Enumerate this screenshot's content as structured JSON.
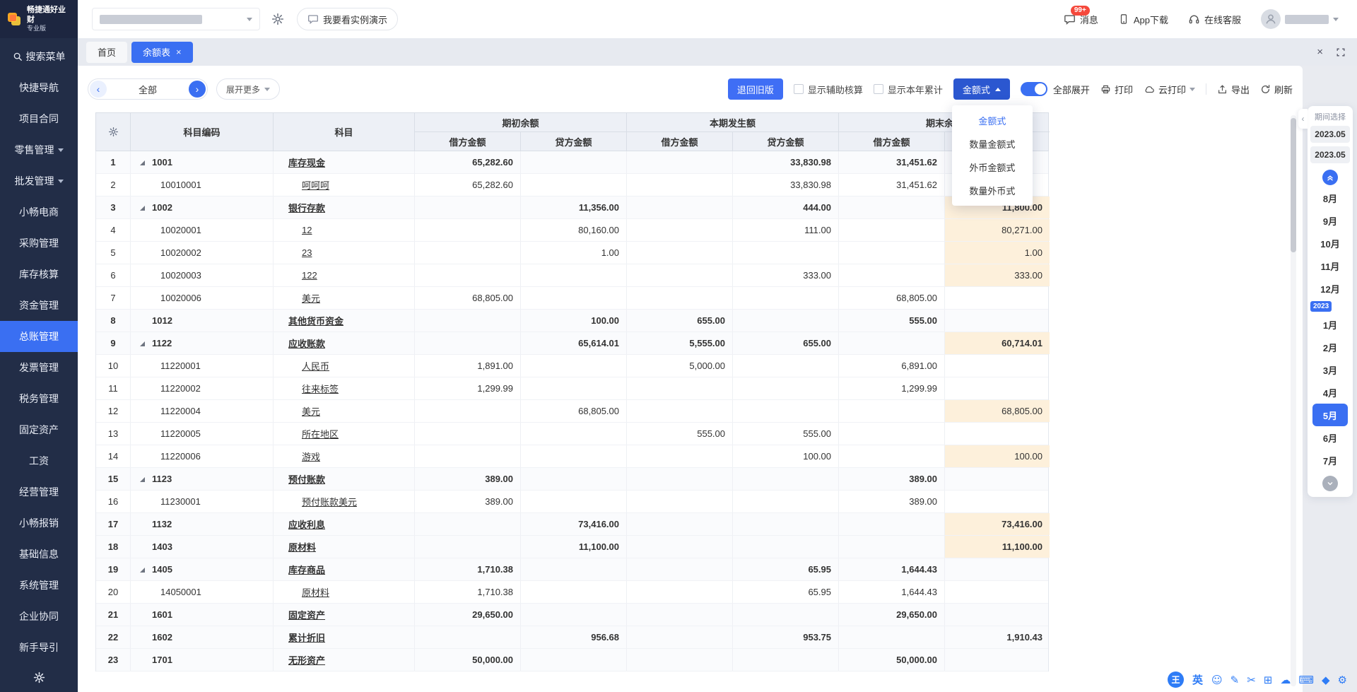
{
  "colors": {
    "accent_blue": "#3a6ff2",
    "format_button_blue": "#2b57d0",
    "sidebar_navy": "#222d47",
    "highlight_orange": "#fdf0db",
    "badge_red": "#f5483b"
  },
  "app": {
    "logo_title": "畅捷通好业财",
    "logo_subtitle": "专业版"
  },
  "sidebar": {
    "items": [
      {
        "label": "搜索菜单",
        "icon": "search"
      },
      {
        "label": "快捷导航"
      },
      {
        "label": "项目合同"
      },
      {
        "label": "零售管理",
        "caret": true
      },
      {
        "label": "批发管理",
        "caret": true
      },
      {
        "label": "小畅电商"
      },
      {
        "label": "采购管理"
      },
      {
        "label": "库存核算"
      },
      {
        "label": "资金管理"
      },
      {
        "label": "总账管理",
        "active": true
      },
      {
        "label": "发票管理"
      },
      {
        "label": "税务管理"
      },
      {
        "label": "固定资产"
      },
      {
        "label": "工资"
      },
      {
        "label": "经营管理"
      },
      {
        "label": "小畅报销"
      },
      {
        "label": "基础信息"
      },
      {
        "label": "系统管理"
      },
      {
        "label": "企业协同"
      },
      {
        "label": "新手导引"
      }
    ]
  },
  "topbar": {
    "demo_link": "我要看实例演示",
    "messages_label": "消息",
    "messages_badge": "99+",
    "app_download_label": "App下载",
    "support_label": "在线客服"
  },
  "tabs": [
    {
      "label": "首页",
      "active": false
    },
    {
      "label": "余额表",
      "active": true
    }
  ],
  "toolbar": {
    "subject_filter": "全部",
    "expand_more": "展开更多",
    "back_old_version": "退回旧版",
    "checkbox_aux": "显示辅助核算",
    "checkbox_ytd": "显示本年累计",
    "format_button": "金额式",
    "expand_all": "全部展开",
    "print": "打印",
    "cloud_print": "云打印",
    "export": "导出",
    "refresh": "刷新"
  },
  "format_menu": {
    "items": [
      "金额式",
      "数量金额式",
      "外币金额式",
      "数量外币式"
    ],
    "selected": "金额式"
  },
  "table": {
    "col_code": "科目编码",
    "col_subject": "科目",
    "h_qc": "期初余额",
    "h_bq": "本期发生额",
    "h_qm": "期末余额",
    "sub_debit": "借方金额",
    "sub_credit": "贷方金额",
    "rows": [
      {
        "num": 1,
        "code": "1001",
        "name": "库存现金",
        "parent": true,
        "tri": true,
        "qc_d": "65,282.60",
        "bq_c": "33,830.98",
        "qm_d": "31,451.62"
      },
      {
        "num": 2,
        "code": "10010001",
        "name": "呵呵呵",
        "qc_d": "65,282.60",
        "bq_c": "33,830.98",
        "qm_d": "31,451.62"
      },
      {
        "num": 3,
        "code": "1002",
        "name": "银行存款",
        "parent": true,
        "tri": true,
        "qc_c": "11,356.00",
        "bq_c": "444.00",
        "qm_c": "11,800.00",
        "flag": true
      },
      {
        "num": 4,
        "code": "10020001",
        "name": "12",
        "qc_c": "80,160.00",
        "bq_c": "111.00",
        "qm_c": "80,271.00",
        "flag": true
      },
      {
        "num": 5,
        "code": "10020002",
        "name": "23",
        "qc_c": "1.00",
        "qm_c": "1.00",
        "flag": true
      },
      {
        "num": 6,
        "code": "10020003",
        "name": "122",
        "bq_c": "333.00",
        "qm_c": "333.00",
        "flag": true
      },
      {
        "num": 7,
        "code": "10020006",
        "name": "美元",
        "qc_d": "68,805.00",
        "qm_d": "68,805.00"
      },
      {
        "num": 8,
        "code": "1012",
        "name": "其他货币资金",
        "parent": true,
        "qc_c": "100.00",
        "bq_d": "655.00",
        "qm_d": "555.00"
      },
      {
        "num": 9,
        "code": "1122",
        "name": "应收账款",
        "parent": true,
        "tri": true,
        "qc_c": "65,614.01",
        "bq_d": "5,555.00",
        "bq_c": "655.00",
        "qm_c": "60,714.01",
        "flag": true
      },
      {
        "num": 10,
        "code": "11220001",
        "name": "人民币",
        "qc_d": "1,891.00",
        "bq_d": "5,000.00",
        "qm_d": "6,891.00"
      },
      {
        "num": 11,
        "code": "11220002",
        "name": "往来标签",
        "qc_d": "1,299.99",
        "qm_d": "1,299.99"
      },
      {
        "num": 12,
        "code": "11220004",
        "name": "美元",
        "qc_c": "68,805.00",
        "qm_c": "68,805.00",
        "flag": true
      },
      {
        "num": 13,
        "code": "11220005",
        "name": "所在地区",
        "bq_d": "555.00",
        "bq_c": "555.00"
      },
      {
        "num": 14,
        "code": "11220006",
        "name": "游戏",
        "bq_c": "100.00",
        "qm_c": "100.00",
        "flag": true
      },
      {
        "num": 15,
        "code": "1123",
        "name": "预付账款",
        "parent": true,
        "tri": true,
        "qc_d": "389.00",
        "qm_d": "389.00"
      },
      {
        "num": 16,
        "code": "11230001",
        "name": "预付账款美元",
        "qc_d": "389.00",
        "qm_d": "389.00"
      },
      {
        "num": 17,
        "code": "1132",
        "name": "应收利息",
        "parent": true,
        "qc_c": "73,416.00",
        "qm_c": "73,416.00",
        "flag": true
      },
      {
        "num": 18,
        "code": "1403",
        "name": "原材料",
        "parent": true,
        "qc_c": "11,100.00",
        "qm_c": "11,100.00",
        "flag": true
      },
      {
        "num": 19,
        "code": "1405",
        "name": "库存商品",
        "parent": true,
        "tri": true,
        "qc_d": "1,710.38",
        "bq_c": "65.95",
        "qm_d": "1,644.43"
      },
      {
        "num": 20,
        "code": "14050001",
        "name": "原材料",
        "qc_d": "1,710.38",
        "bq_c": "65.95",
        "qm_d": "1,644.43"
      },
      {
        "num": 21,
        "code": "1601",
        "name": "固定资产",
        "parent": true,
        "qc_d": "29,650.00",
        "qm_d": "29,650.00"
      },
      {
        "num": 22,
        "code": "1602",
        "name": "累计折旧",
        "parent": true,
        "qc_c": "956.68",
        "bq_c": "953.75",
        "qm_c": "1,910.43"
      },
      {
        "num": 23,
        "code": "1701",
        "name": "无形资产",
        "parent": true,
        "qc_d": "50,000.00",
        "qm_d": "50,000.00"
      }
    ]
  },
  "period_panel": {
    "title": "期间选择",
    "date_from": "2023.05",
    "date_to": "2023.05",
    "year_badge": "2023",
    "months_top": [
      "8月",
      "9月",
      "10月",
      "11月",
      "12月"
    ],
    "months_bottom": [
      "1月",
      "2月",
      "3月",
      "4月",
      "5月",
      "6月",
      "7月"
    ],
    "selected": "5月"
  },
  "ime_bar": {
    "primary": "王",
    "lang": "英",
    "icons": [
      "smiley",
      "pen",
      "scissors",
      "grid",
      "cloud",
      "keyboard",
      "shape",
      "settings"
    ]
  }
}
